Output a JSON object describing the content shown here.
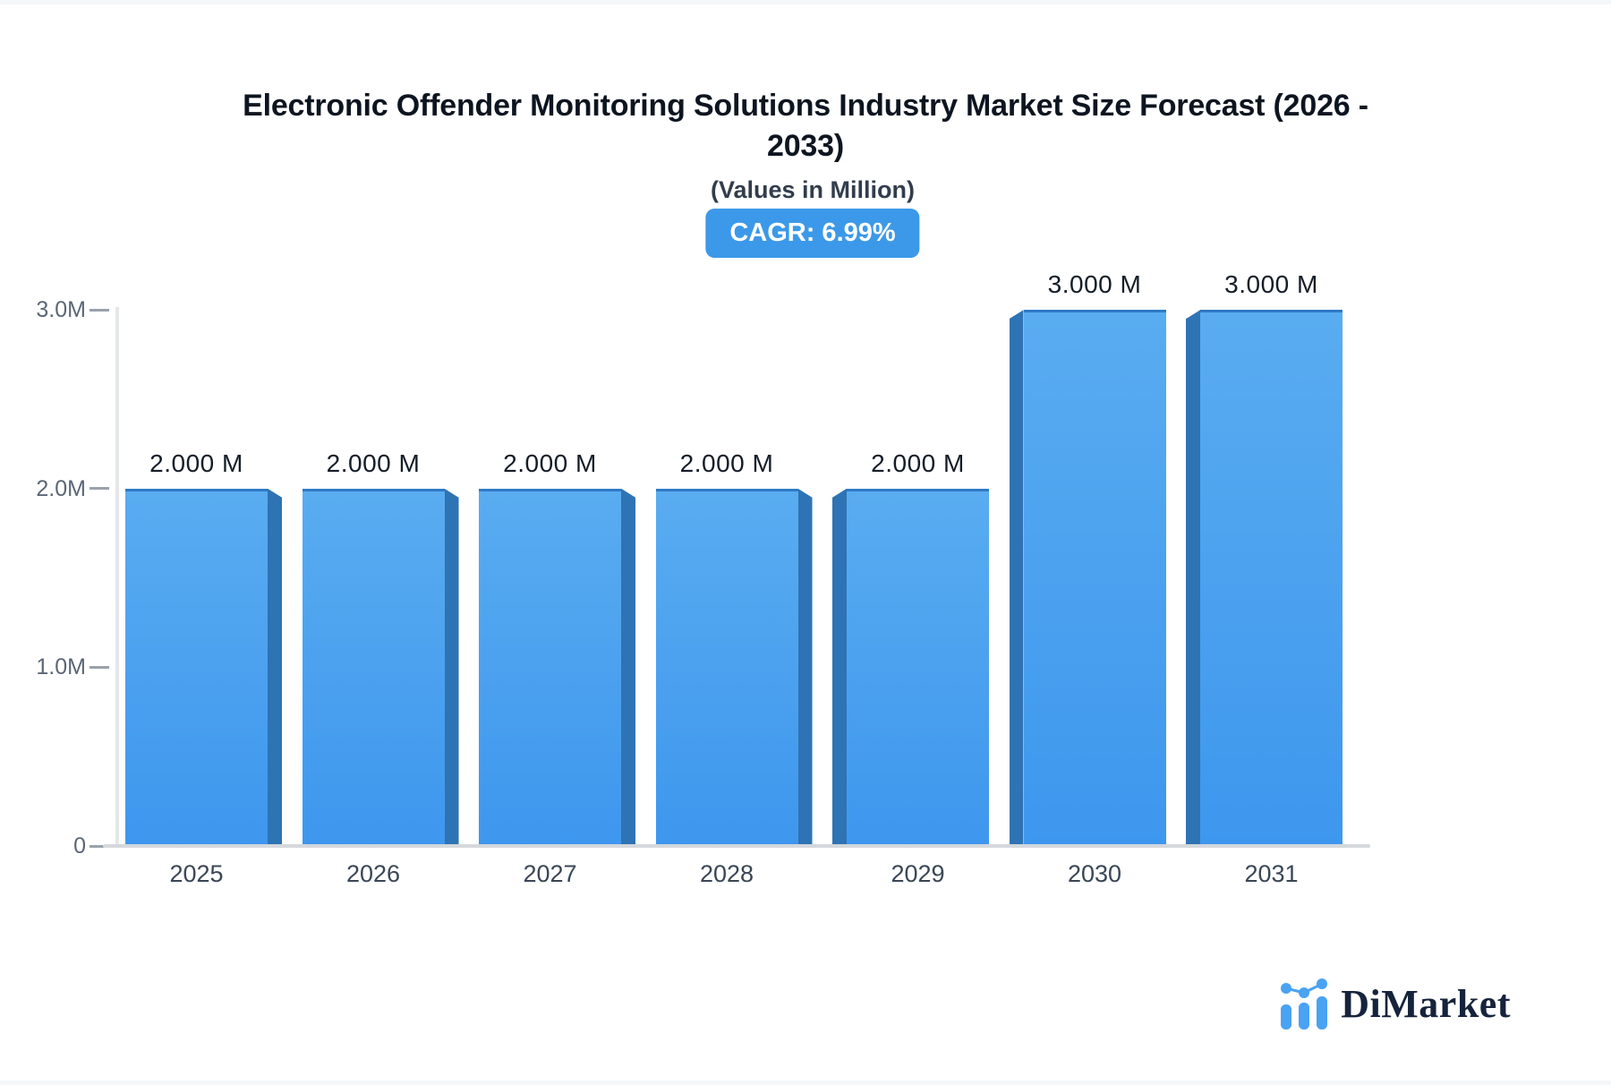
{
  "header": {
    "title_line1": "Electronic Offender Monitoring Solutions Industry Market Size Forecast (2026 -",
    "title_line2": "2033)",
    "subtitle": "(Values in Million)",
    "cagr_label": "CAGR: 6.99%"
  },
  "chart_data": {
    "type": "bar",
    "title": "Electronic Offender Monitoring Solutions Industry Market Size Forecast (2026 - 2033)",
    "subtitle": "(Values in Million)",
    "cagr_percent": 6.99,
    "categories": [
      "2025",
      "2026",
      "2027",
      "2028",
      "2029",
      "2030",
      "2031"
    ],
    "values": [
      2.0,
      2.0,
      2.0,
      2.0,
      2.0,
      3.0,
      3.0
    ],
    "value_labels": [
      "2.000 M",
      "2.000 M",
      "2.000 M",
      "2.000 M",
      "2.000 M",
      "3.000 M",
      "3.000 M"
    ],
    "unit": "Million",
    "ylim": [
      0,
      3
    ],
    "yticks": [
      {
        "label": "0",
        "value": 0
      },
      {
        "label": "1.0M",
        "value": 1
      },
      {
        "label": "2.0M",
        "value": 2
      },
      {
        "label": "3.0M",
        "value": 3
      }
    ],
    "grid": false,
    "legend": false,
    "style": "3d-bars, side face toward chart center"
  },
  "watermark": {
    "brand": "DiMarket",
    "icon": "bar-chart-logo-icon"
  },
  "colors": {
    "badge_bg": "#3c99e9",
    "badge_text": "#ffffff",
    "title": "#0d1520",
    "subtitle": "#323d4c",
    "bar_face_top": "#59acf0",
    "bar_face_bottom": "#3e97ee",
    "bar_top_edge": "#2f7ac6",
    "bar_side": "#2e73b4",
    "axis_line": "#e4e6ea",
    "baseline": "#d5d8dc",
    "tick": "#9aa2ac",
    "tick_label": "#5b6676",
    "x_label": "#3a4656",
    "value_label": "#141d28",
    "brand_text": "#16233c",
    "brand_icon": "#4aa2f3",
    "page_edge": "#f6f7f9"
  }
}
